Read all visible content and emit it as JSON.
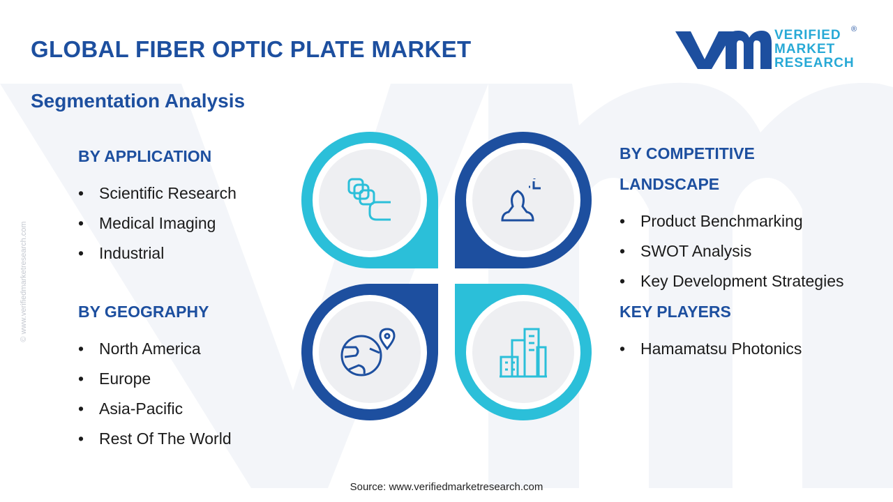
{
  "header": {
    "title": "GLOBAL FIBER OPTIC PLATE MARKET",
    "subtitle": "Segmentation Analysis"
  },
  "logo": {
    "lines": [
      "VERIFIED",
      "MARKET",
      "RESEARCH"
    ],
    "mark": "®"
  },
  "side_text": "© www.verifiedmarketresearch.com",
  "sections": [
    {
      "heading": "BY APPLICATION",
      "items": [
        "Scientific Research",
        "Medical Imaging",
        "Industrial"
      ]
    },
    {
      "heading": "BY GEOGRAPHY",
      "items": [
        "North America",
        "Europe",
        "Asia-Pacific",
        "Rest Of The World"
      ]
    },
    {
      "heading": "BY COMPETITIVE LANDSCAPE",
      "items": [
        "Product Benchmarking",
        "SWOT Analysis",
        "Key Development Strategies"
      ]
    },
    {
      "heading": "KEY PLAYERS",
      "items": [
        "Hamamatsu Photonics"
      ]
    }
  ],
  "footer": {
    "source": "Source: www.verifiedmarketresearch.com"
  }
}
